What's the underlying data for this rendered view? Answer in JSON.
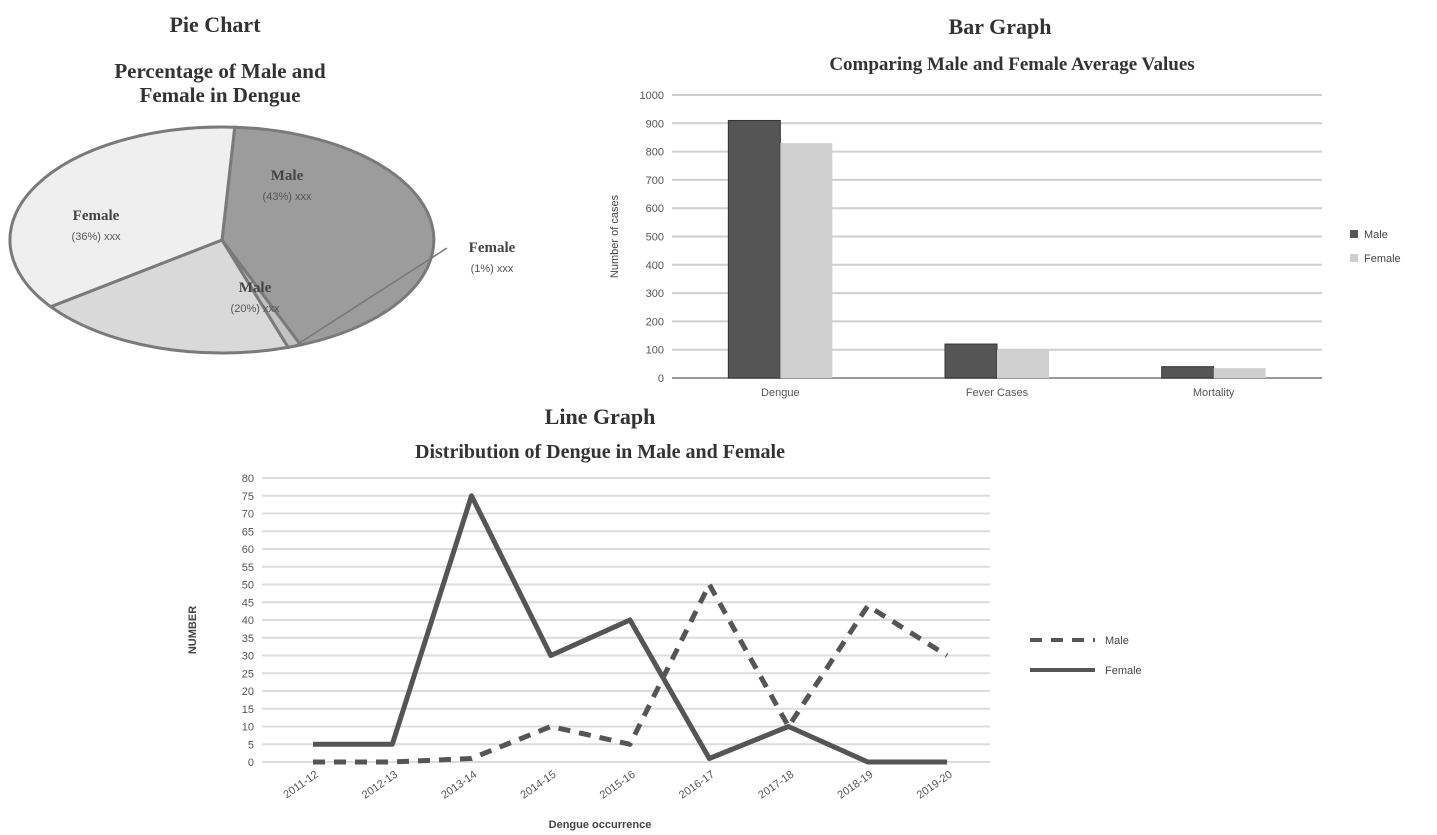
{
  "chart_data": [
    {
      "type": "pie",
      "heading": "Pie Chart",
      "title": "Percentage of Male and Female in Dengue",
      "slices": [
        {
          "label": "Male",
          "value_label": "(43%) xxx",
          "value": 43,
          "color": "#9c9c9c"
        },
        {
          "label": "Female",
          "value_label": "(1%) xxx",
          "value": 1,
          "color": "#c2c2c2"
        },
        {
          "label": "Male",
          "value_label": "(20%) xxx",
          "value": 20,
          "color": "#d9d9d9"
        },
        {
          "label": "Female",
          "value_label": "(36%) xxx",
          "value": 36,
          "color": "#efefef"
        }
      ]
    },
    {
      "type": "bar",
      "heading": "Bar Graph",
      "title": "Comparing Male and Female Average Values",
      "ylabel": "Number of cases",
      "ylim": [
        0,
        1000
      ],
      "yticks": [
        0,
        100,
        200,
        300,
        400,
        500,
        600,
        700,
        800,
        900,
        1000
      ],
      "categories": [
        "Dengue",
        "Fever Cases",
        "Mortality"
      ],
      "series": [
        {
          "name": "Male",
          "values": [
            910,
            120,
            40
          ],
          "color": "#555555"
        },
        {
          "name": "Female",
          "values": [
            830,
            100,
            35
          ],
          "color": "#cfcfcf"
        }
      ],
      "legend": "right"
    },
    {
      "type": "line",
      "heading": "Line Graph",
      "title": "Distribution of Dengue in Male and Female",
      "ylabel": "NUMBER",
      "xlabel": "Dengue occurrence",
      "ylim": [
        0,
        80
      ],
      "yticks": [
        0,
        5,
        10,
        15,
        20,
        25,
        30,
        35,
        40,
        45,
        50,
        55,
        60,
        65,
        70,
        75,
        80
      ],
      "categories": [
        "2011-12",
        "2012-13",
        "2013-14",
        "2014-15",
        "2015-16",
        "2016-17",
        "2017-18",
        "2018-19",
        "2019-20"
      ],
      "series": [
        {
          "name": "Male",
          "style": "dashed",
          "values": [
            0,
            0,
            1,
            10,
            5,
            50,
            10,
            44,
            30
          ],
          "color": "#555555"
        },
        {
          "name": "Female",
          "style": "solid",
          "values": [
            5,
            5,
            75,
            30,
            40,
            1,
            10,
            0,
            0
          ],
          "color": "#555555"
        }
      ],
      "legend": "right"
    }
  ]
}
